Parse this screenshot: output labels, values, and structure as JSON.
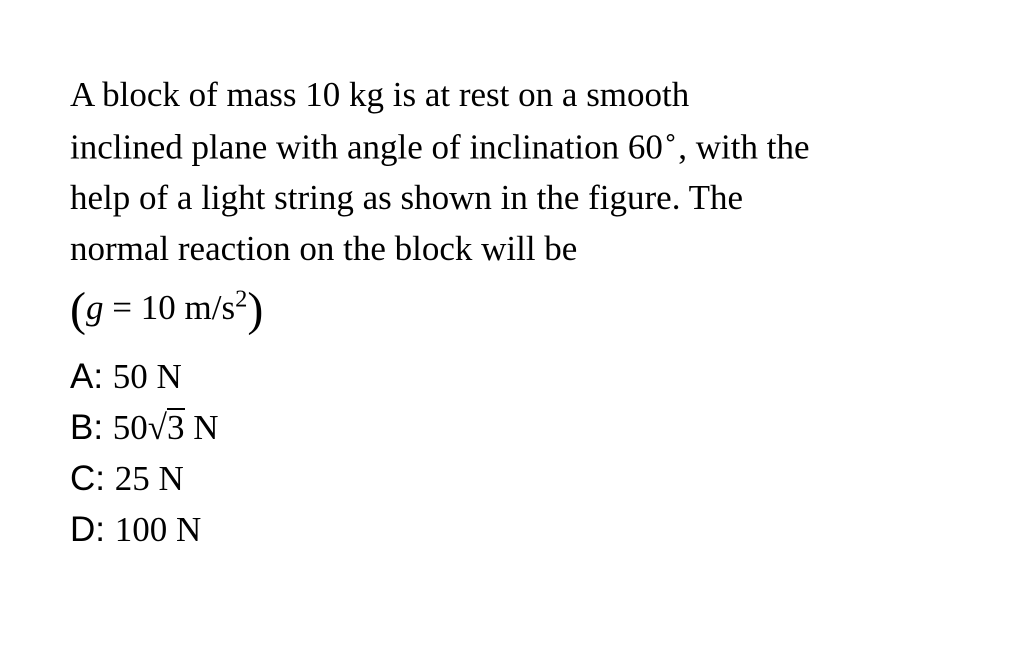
{
  "question": {
    "line1_part1": "A block of mass ",
    "mass_value": "10",
    "mass_unit": " kg",
    "line1_part2": " is at rest on a smooth",
    "line2_part1": "inclined plane with angle of inclination ",
    "angle_value": "60",
    "line2_part2": ", with the",
    "line3": "help of a light string as shown in the figure. The",
    "line4": "normal reaction on the block will be",
    "g_var": "g",
    "equals": " = ",
    "g_value": "10",
    "g_unit1": " m",
    "g_unit2": "s",
    "g_exp": "2"
  },
  "options": {
    "a_label": "A: ",
    "a_value": "50",
    "a_unit": " N",
    "b_label": "B: ",
    "b_value": "50",
    "b_sqrt_arg": "3",
    "b_unit": " N",
    "c_label": "C: ",
    "c_value": "25",
    "c_unit": " N",
    "d_label": "D: ",
    "d_value": "100",
    "d_unit": " N"
  },
  "style": {
    "background": "#ffffff",
    "text_color": "#000000",
    "question_fontsize": 35,
    "option_fontsize": 35
  }
}
